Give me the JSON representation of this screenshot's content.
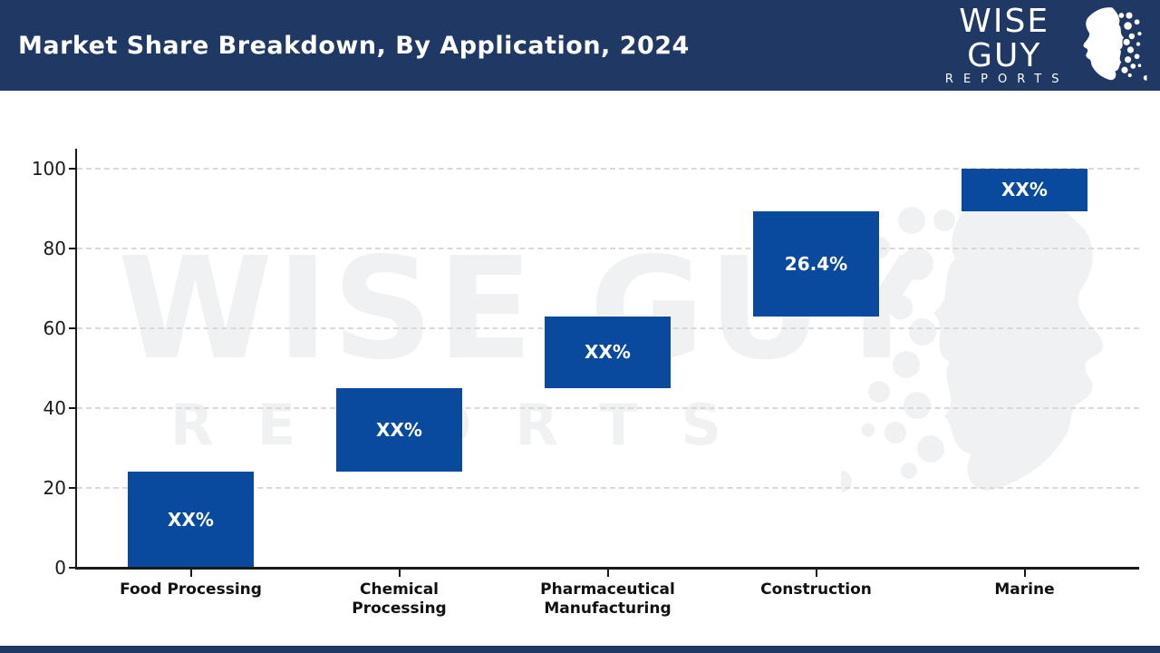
{
  "header": {
    "title": "Market Share Breakdown, By Application, 2024",
    "logo": {
      "line1": "WISE GUY",
      "line2": "REPORTS"
    }
  },
  "watermark": {
    "line1": "WISE GUY",
    "line2": "REPORTS"
  },
  "chart_data": {
    "type": "bar",
    "variant": "floating-waterfall-segments",
    "title": "Market Share Breakdown, By Application, 2024",
    "categories": [
      "Food Processing",
      "Chemical Processing",
      "Pharmaceutical Manufacturing",
      "Construction",
      "Marine"
    ],
    "category_label_lines": [
      [
        "Food Processing"
      ],
      [
        "Chemical",
        "Processing"
      ],
      [
        "Pharmaceutical",
        "Manufacturing"
      ],
      [
        "Construction"
      ],
      [
        "Marine"
      ]
    ],
    "segments": [
      {
        "category": "Food Processing",
        "start": 0,
        "end": 24,
        "value_label": "XX%"
      },
      {
        "category": "Chemical Processing",
        "start": 24,
        "end": 45,
        "value_label": "XX%"
      },
      {
        "category": "Pharmaceutical Manufacturing",
        "start": 45,
        "end": 63,
        "value_label": "XX%"
      },
      {
        "category": "Construction",
        "start": 63,
        "end": 89.4,
        "value_label": "26.4%"
      },
      {
        "category": "Marine",
        "start": 89.4,
        "end": 100,
        "value_label": "XX%"
      }
    ],
    "xlabel": "",
    "ylabel": "",
    "yticks": [
      0,
      20,
      40,
      60,
      80,
      100
    ],
    "ylim": [
      0,
      105
    ],
    "grid": "horizontal-dashed",
    "legend": "none",
    "colors": {
      "bar": "#0a4a9e",
      "bar_label": "#ffffff",
      "header_navy": "#1f3864",
      "grid_gray": "#d9d9d9",
      "axis_black": "#1a1a1a",
      "watermark_gray": "#f0f1f3"
    }
  }
}
